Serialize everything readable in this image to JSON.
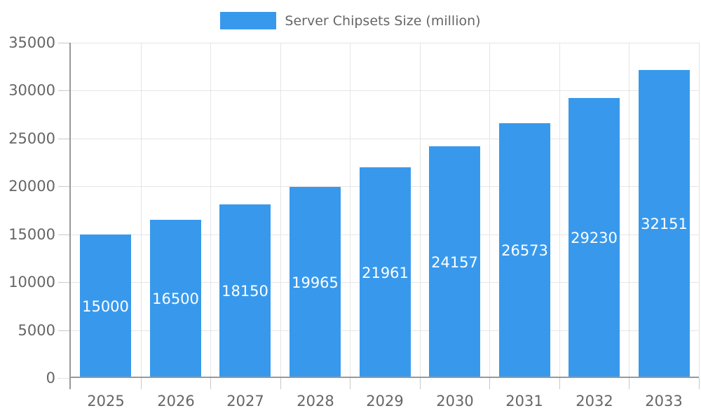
{
  "chart_data": {
    "type": "bar",
    "title": "",
    "legend_position": "top",
    "legend_label": "Server Chipsets Size (million)",
    "categories": [
      "2025",
      "2026",
      "2027",
      "2028",
      "2029",
      "2030",
      "2031",
      "2032",
      "2033"
    ],
    "series": [
      {
        "name": "Server Chipsets Size (million)",
        "values": [
          15000,
          16500,
          18150,
          19965,
          21961,
          24157,
          26573,
          29230,
          32151
        ]
      }
    ],
    "bar_value_labels": [
      "15000",
      "16500",
      "18150",
      "19965",
      "21961",
      "24157",
      "26573",
      "29230",
      "32151"
    ],
    "ylim": [
      0,
      35000
    ],
    "ytick_step": 5000,
    "ytick_labels": [
      "0",
      "5000",
      "10000",
      "15000",
      "20000",
      "25000",
      "30000",
      "35000"
    ],
    "grid": true,
    "colors": {
      "bar": "#3899EC",
      "grid_line": "#e5e5e5",
      "tick_line": "#c9c9c9",
      "axis_line": "#999999",
      "axis_text": "#666666",
      "bar_label_text": "#ffffff",
      "background": "#ffffff"
    }
  }
}
